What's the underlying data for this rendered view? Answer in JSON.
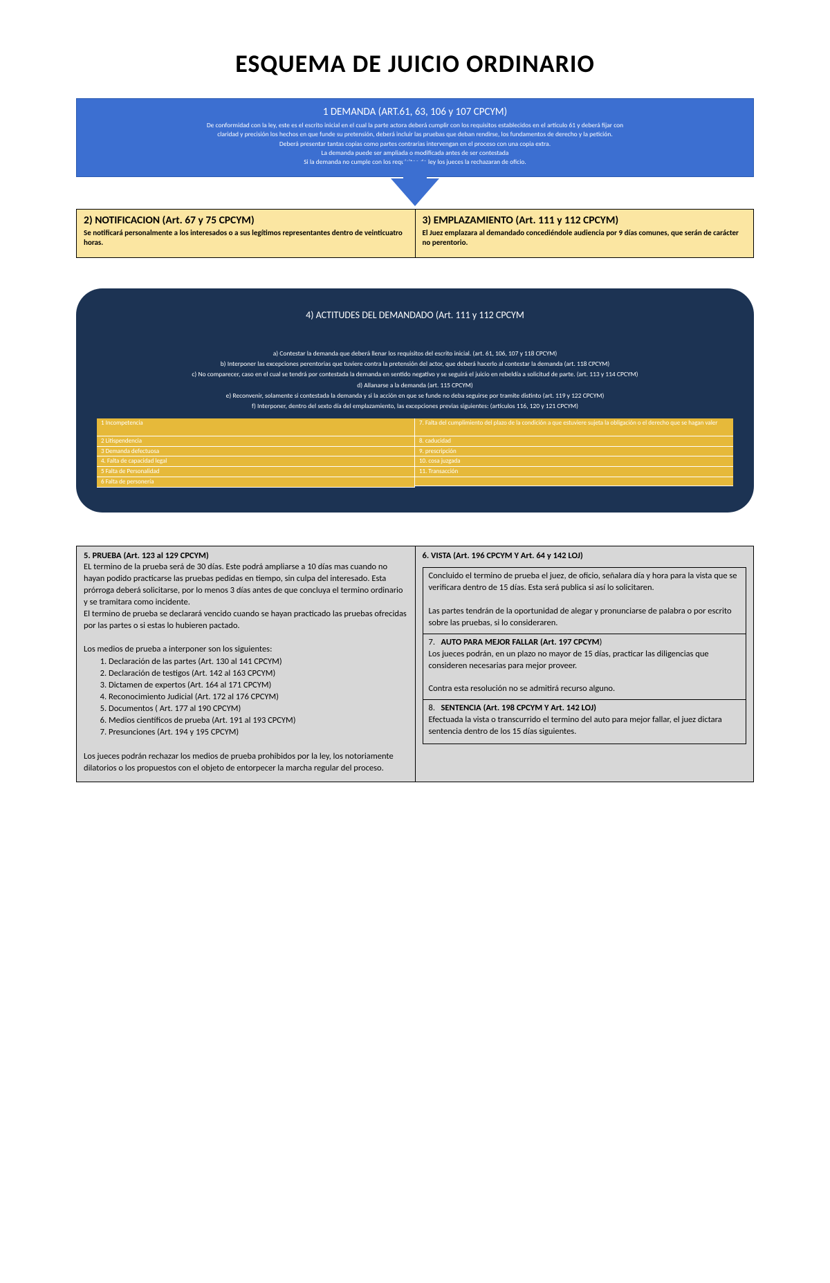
{
  "colors": {
    "blue": "#3c6fd1",
    "yellow": "#fbe6a2",
    "darknavy": "#1c3353",
    "tableyellow": "#e6b93a",
    "gray": "#d7d7d7"
  },
  "title": "ESQUEMA DE JUICIO ORDINARIO",
  "demanda": {
    "heading": "1 DEMANDA (ART.61, 63, 106 y  107 CPCYM)",
    "lines": [
      "De conformidad con la ley, este es el escrito inicial en el cual la parte actora deberá cumplir con los requisitos establecidos en el artículo 61 y deberá fijar con",
      "claridad y precisión los hechos en que funde su pretensión, deberá incluir las pruebas que deban rendirse, los fundamentos de derecho y la petición.",
      "Deberá presentar tantas copias como partes contrarias intervengan en el proceso con una copia extra.",
      "La demanda puede ser ampliada o modificada antes de ser contestada",
      "Si la demanda no cumple con los requisitos de ley los jueces la rechazaran de oficio."
    ]
  },
  "notificacion": {
    "title": "2) NOTIFICACION (Art. 67 y 75 CPCYM)",
    "body": "Se notificará personalmente a los interesados o a sus legítimos representantes dentro de veinticuatro horas."
  },
  "emplazamiento": {
    "title": "3) EMPLAZAMIENTO (Art. 111 y 112 CPCYM)",
    "body": "El Juez emplazara al demandado concediéndole audiencia por 9 días comunes, que serán de carácter no perentorio."
  },
  "actitudes": {
    "title": "4) ACTITUDES DEL DEMANDADO (Art. 111 y 112 CPCYM",
    "items": [
      "a)      Contestar la demanda que deberá llenar los requisitos del escrito inicial. (art. 61, 106, 107 y 118 CPCYM)",
      "b)      Interponer las excepciones perentorias que tuviere contra la pretensión del actor, que deberá hacerlo al contestar la demanda  (art. 118 CPCYM)",
      "c)      No comparecer, caso en el cual se tendrá por contestada la demanda en sentido negativo y se seguirá el juicio en rebeldía a solicitud de parte. (art. 113 y 114 CPCYM)",
      "d)      Allanarse a la demanda (art. 115 CPCYM)",
      "e)      Reconvenir, solamente si contestada la demanda y si la acción en que se funde no deba seguirse por tramite distinto (art. 119 y 122 CPCYM)",
      "f)        Interponer, dentro del sexto día del emplazamiento, las excepciones previas siguientes: (artículos 116, 120 y 121 CPCYM)"
    ],
    "excepciones_left": [
      "1 Incompetencia",
      "2 Litispendencia",
      "3 Demanda defectuosa",
      "4. Falta de capacidad legal",
      "5 Falta de Personalidad",
      "6 Falta de personería"
    ],
    "excepciones_right": [
      "7. Falta del cumplimiento del plazo de la condición a que estuviere sujeta la obligación o el derecho que se hagan valer",
      "8. caducidad",
      "9. prescripción",
      "10. cosa juzgada",
      "11. Transacción",
      ""
    ]
  },
  "prueba": {
    "title": "5. PRUEBA (Art. 123 al 129 CPCYM)",
    "p1": "EL termino de la prueba será de 30 días. Este podrá ampliarse a 10 días mas cuando no hayan podido practicarse las pruebas pedidas en tiempo, sin culpa del interesado. Esta prórroga deberá solicitarse, por lo menos 3 días antes de que concluya el termino ordinario y se tramitara como incidente.",
    "p2": "El termino de prueba se declarará vencido cuando se hayan practicado las pruebas ofrecidas por las partes o si estas lo hubieren pactado.",
    "p3": "Los medios de prueba a interponer son los siguientes:",
    "medios": [
      "Declaración de las partes (Art. 130 al 141 CPCYM)",
      "Declaración de testigos (Art. 142 al 163 CPCYM)",
      "Dictamen de expertos (Art. 164 al 171 CPCYM)",
      "Reconocimiento Judicial (Art. 172 al 176 CPCYM)",
      "Documentos ( Art. 177 al 190 CPCYM)",
      "Medios científicos de prueba (Art. 191 al 193 CPCYM)",
      "Presunciones (Art. 194 y 195 CPCYM)"
    ],
    "p4": "Los jueces podrán rechazar los medios de prueba prohibidos por la ley, los notoriamente dilatorios o los propuestos con el objeto de entorpecer la marcha regular del proceso."
  },
  "vista": {
    "title": "6. VISTA (Art. 196 CPCYM Y Art. 64 y 142 LOJ)",
    "p1": "Concluido el termino de prueba el juez, de oficio, señalara día y hora para la vista que se verificara dentro de 15 días. Esta será publica si así lo solicitaren.",
    "p2": "Las partes tendrán de la oportunidad de alegar y pronunciarse de palabra o por escrito sobre las pruebas, si lo consideraren."
  },
  "auto": {
    "title": "7.   AUTO PARA MEJOR FALLAR (Art. 197 CPCYM)",
    "p1": "Los jueces podrán, en un plazo no mayor de 15 días, practicar las diligencias que consideren necesarias para mejor proveer.",
    "p2": "Contra esta resolución no se admitirá recurso alguno."
  },
  "sentencia": {
    "title": "8.   SENTENCIA (Art. 198 CPCYM Y Art. 142 LOJ)",
    "p1": "Efectuada la vista o transcurrido el termino del auto para mejor fallar, el juez dictara sentencia dentro de los 15 días siguientes."
  }
}
